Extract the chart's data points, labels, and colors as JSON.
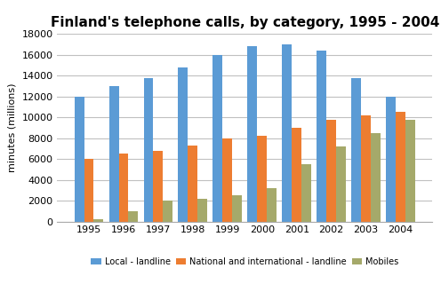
{
  "title": "Finland's telephone calls, by category, 1995 - 2004",
  "years": [
    1995,
    1996,
    1997,
    1998,
    1999,
    2000,
    2001,
    2002,
    2003,
    2004
  ],
  "local_landline": [
    12000,
    13000,
    13800,
    14800,
    16000,
    16800,
    17000,
    16400,
    13800,
    12000
  ],
  "national_international": [
    6000,
    6500,
    6800,
    7300,
    8000,
    8200,
    9000,
    9800,
    10200,
    10500
  ],
  "mobiles": [
    200,
    1000,
    2000,
    2200,
    2500,
    3200,
    5500,
    7200,
    8500,
    9800
  ],
  "bar_colors": [
    "#5B9BD5",
    "#ED7D31",
    "#A5A96A"
  ],
  "legend_labels": [
    "Local - landline",
    "National and international - landline",
    "Mobiles"
  ],
  "ylabel": "minutes (millions)",
  "ylim": [
    0,
    18000
  ],
  "yticks": [
    0,
    2000,
    4000,
    6000,
    8000,
    10000,
    12000,
    14000,
    16000,
    18000
  ],
  "background_color": "#FFFFFF",
  "grid_color": "#C0C0C0",
  "title_fontsize": 11,
  "axis_fontsize": 8,
  "bar_width": 0.28
}
